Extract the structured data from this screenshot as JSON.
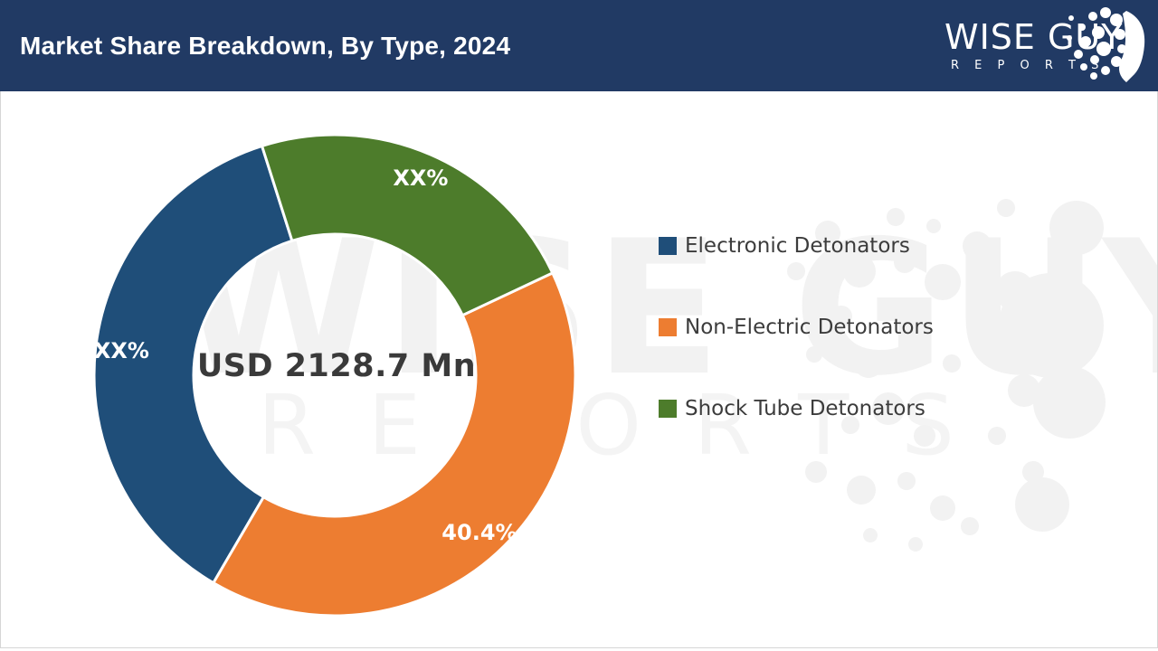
{
  "header": {
    "title": "Market Share Breakdown, By Type, 2024",
    "brand": {
      "name": "WISE GUY",
      "sub": "R E P O R T S"
    }
  },
  "watermark": {
    "line1": "WISE GUY",
    "line2": "REPORTS"
  },
  "chart_data": {
    "type": "donut",
    "title": "Market Share Breakdown, By Type, 2024",
    "center_label": "USD 2128.7 Mn",
    "legend_position": "right",
    "start_angle_deg": 107.6,
    "counterclockwise": true,
    "series": [
      {
        "name": "Electronic Detonators",
        "value": 36.7,
        "display_label": "XX%",
        "color": "#1F4E79"
      },
      {
        "name": "Non-Electric Detonators",
        "value": 40.4,
        "display_label": "40.4%",
        "color": "#ED7D31"
      },
      {
        "name": "Shock Tube Detonators",
        "value": 22.9,
        "display_label": "XX%",
        "color": "#4D7C2B"
      }
    ]
  },
  "colors": {
    "header_bg": "#213A64",
    "center_text": "#3A3A3A",
    "watermark": "#F2F2F2"
  }
}
